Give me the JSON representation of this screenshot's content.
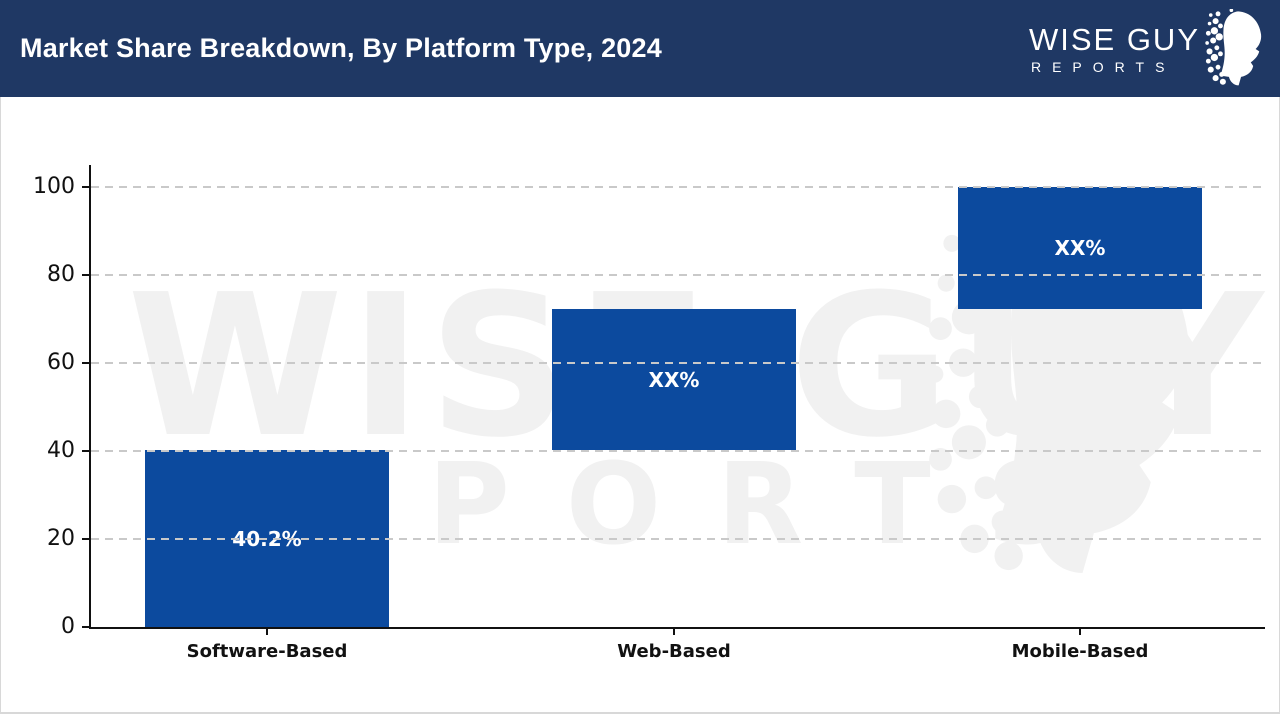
{
  "header": {
    "title": "Market Share Breakdown, By Platform Type, 2024",
    "logo_line1": "WISE GUY",
    "logo_line2": "REPORTS"
  },
  "watermark": {
    "line1": "WISE GUY",
    "line2": "REPORTS"
  },
  "colors": {
    "header_bg": "#1f3864",
    "bar_blue": "#0c4a9e",
    "value_label": "#ffffff",
    "watermark": "#f1f1f1",
    "grid": "#c9c9c9",
    "axis": "#111111",
    "text": "#111111",
    "border_gray": "#d8d8d8"
  },
  "chart_data": {
    "type": "bar",
    "subtype": "cumulative-waterfall",
    "title": "Market Share Breakdown, By Platform Type, 2024",
    "categories": [
      "Software-Based",
      "Web-Based",
      "Mobile-Based"
    ],
    "series": [
      {
        "name": "Market Share (%)",
        "values": [
          40.2,
          32.0,
          27.8
        ]
      }
    ],
    "segments": [
      {
        "category": "Software-Based",
        "start": 0,
        "end": 40.2,
        "label": "40.2%"
      },
      {
        "category": "Web-Based",
        "start": 40.2,
        "end": 72.2,
        "label": "XX%"
      },
      {
        "category": "Mobile-Based",
        "start": 72.2,
        "end": 100,
        "label": "XX%"
      }
    ],
    "xlabel": "",
    "ylabel": "",
    "ylim": [
      0,
      105
    ],
    "yticks": [
      0,
      20,
      40,
      60,
      80,
      100
    ],
    "grid": "horizontal-dashed-above-bars",
    "legend": "none"
  }
}
